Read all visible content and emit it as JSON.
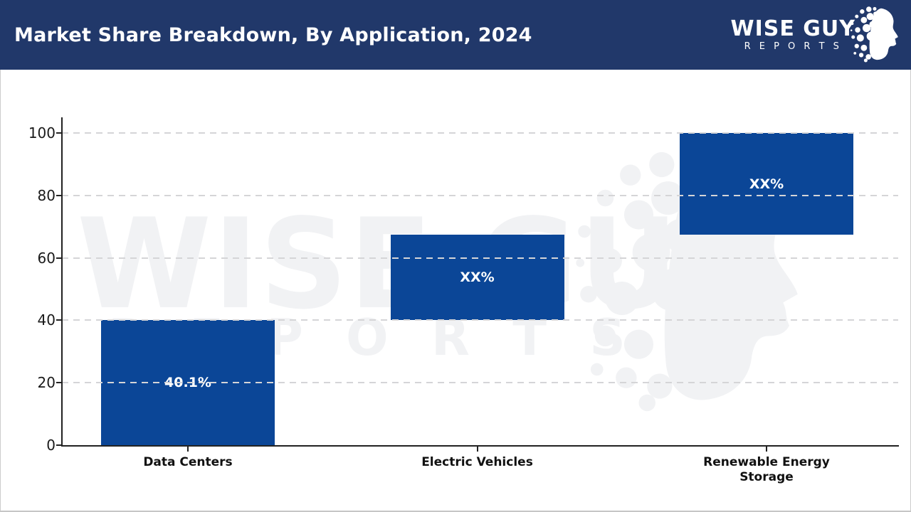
{
  "header": {
    "title": "Market Share Breakdown, By Application, 2024",
    "logo": {
      "wordmark": "WISE GUY",
      "subtext": "R E P O R T S"
    }
  },
  "watermark": {
    "wordmark": "WISE GUY",
    "subtext": "R E P O R T S"
  },
  "colors": {
    "header_bg": "#21386a",
    "bar_blue": "#0b4697",
    "bar_label_text": "#ffffff",
    "grid": "#d5d5d7",
    "axis": "#222222",
    "watermark_gray": "#f1f2f4",
    "title_text": "#ffffff"
  },
  "chart_data": {
    "type": "bar",
    "subtype": "floating-segment-breakdown",
    "title": "Market Share Breakdown, By Application, 2024",
    "categories": [
      "Data Centers",
      "Electric Vehicles",
      "Renewable Energy Storage"
    ],
    "series": [
      {
        "name": "Market share (%)",
        "segments": [
          {
            "category": "Data Centers",
            "start": 0,
            "end": 40.1,
            "label": "40.1%"
          },
          {
            "category": "Electric Vehicles",
            "start": 40.1,
            "end": 67.4,
            "label": "XX%"
          },
          {
            "category": "Renewable Energy Storage",
            "start": 67.4,
            "end": 100,
            "label": "XX%"
          }
        ]
      }
    ],
    "xlabel": "",
    "ylabel": "",
    "ylim": [
      0,
      100
    ],
    "yticks": [
      0,
      20,
      40,
      60,
      80,
      100
    ],
    "grid": "horizontal-dashed",
    "legend": "none"
  }
}
